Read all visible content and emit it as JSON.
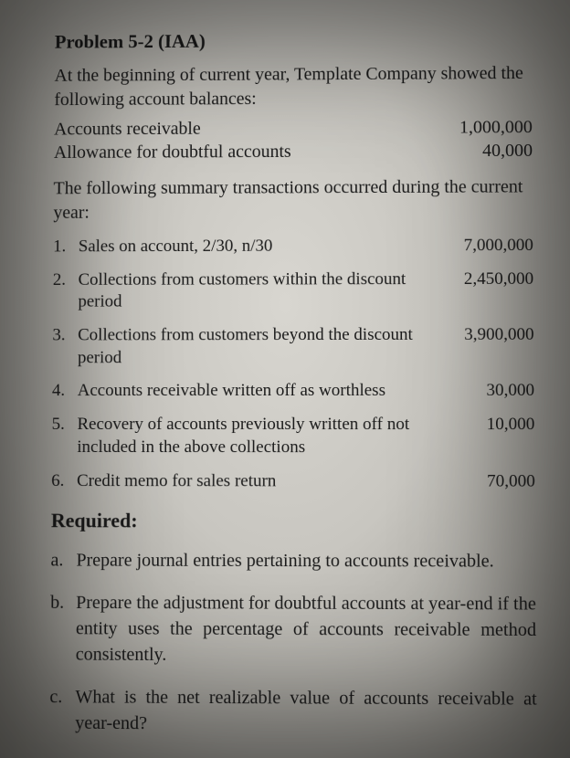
{
  "title": "Problem 5-2 (IAA)",
  "intro": "At the beginning of current year, Template Company showed the following account balances:",
  "balances": [
    {
      "label": "Accounts receivable",
      "value": "1,000,000"
    },
    {
      "label": "Allowance for doubtful accounts",
      "value": "40,000"
    }
  ],
  "subhead": "The following summary transactions occurred during the current year:",
  "transactions": [
    {
      "num": "1.",
      "desc": "Sales on account, 2/30, n/30",
      "value": "7,000,000"
    },
    {
      "num": "2.",
      "desc": "Collections from customers within the discount period",
      "value": "2,450,000"
    },
    {
      "num": "3.",
      "desc": "Collections from customers beyond the discount period",
      "value": "3,900,000"
    },
    {
      "num": "4.",
      "desc": "Accounts receivable written off as worthless",
      "value": "30,000"
    },
    {
      "num": "5.",
      "desc": "Recovery of accounts previously written off not included in the above collections",
      "value": "10,000"
    },
    {
      "num": "6.",
      "desc": "Credit memo for sales return",
      "value": "70,000"
    }
  ],
  "required_label": "Required:",
  "requirements": [
    {
      "letter": "a.",
      "text": "Prepare journal entries pertaining to accounts receivable."
    },
    {
      "letter": "b.",
      "text": "Prepare the adjustment for doubtful accounts at year-end if the entity uses the percentage of accounts receivable method consistently."
    },
    {
      "letter": "c.",
      "text": "What is the net realizable value of accounts receivable at year-end?"
    }
  ],
  "style": {
    "page_bg_center": "#d8d6d0",
    "page_bg_edge": "#787670",
    "text_color": "#1a1a1a",
    "title_fontsize_pt": 16,
    "body_fontsize_pt": 15,
    "font_family": "Georgia/serif"
  }
}
